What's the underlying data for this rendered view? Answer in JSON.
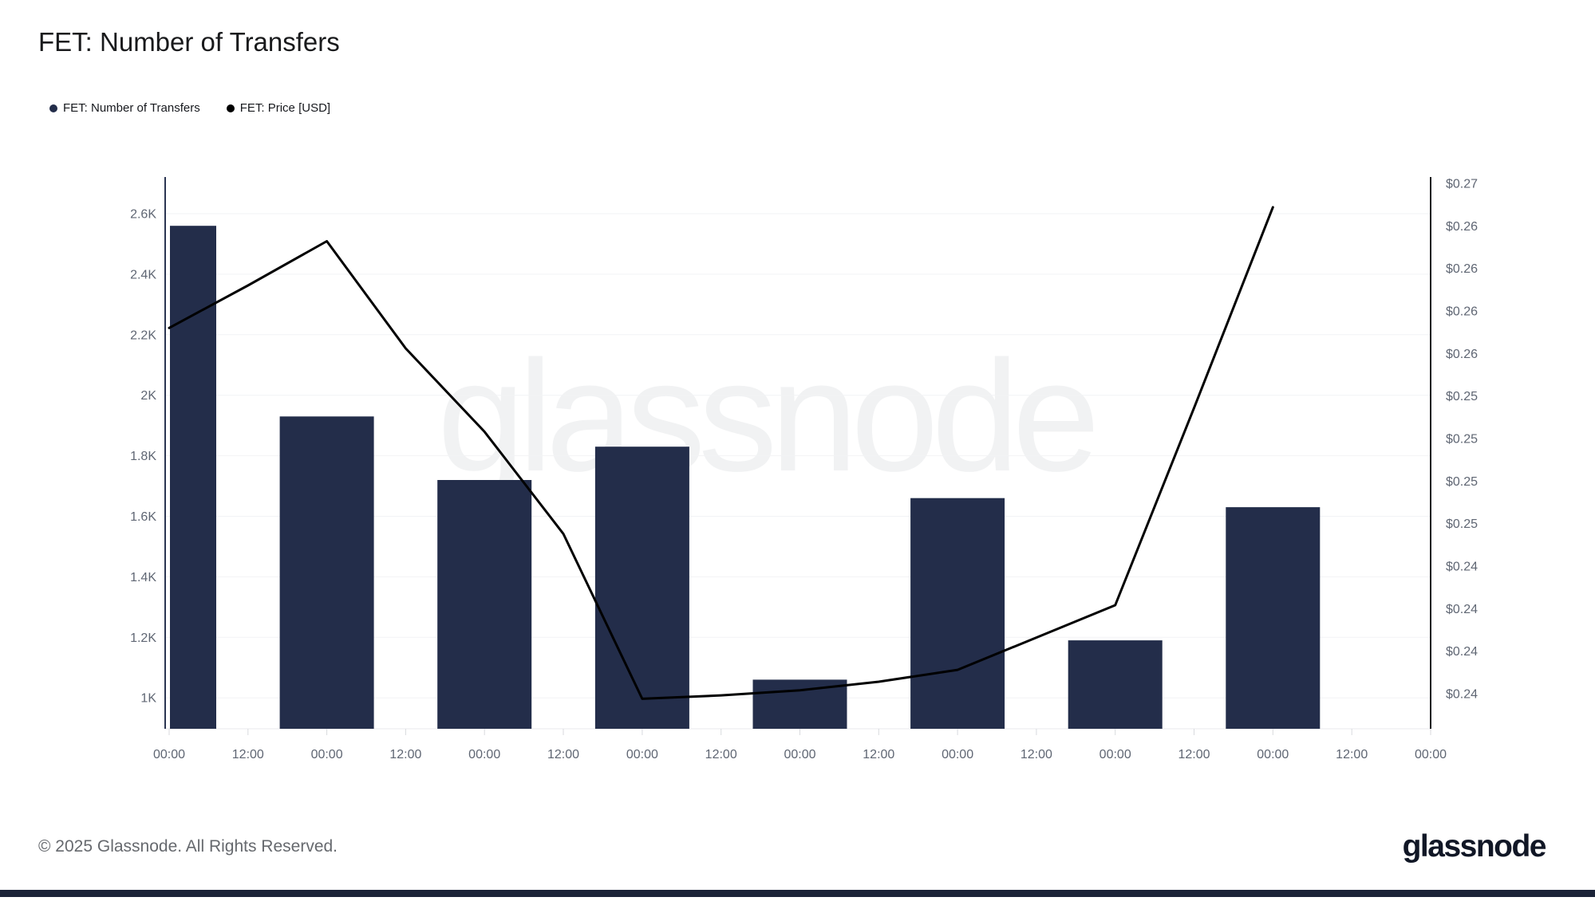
{
  "header": {
    "title": "FET: Number of Transfers"
  },
  "legend": {
    "items": [
      {
        "label": "FET: Number of Transfers",
        "color": "#232d4a"
      },
      {
        "label": "FET: Price [USD]",
        "color": "#000000"
      }
    ]
  },
  "watermark": "glassnode",
  "footer": {
    "copyright": "© 2025 Glassnode. All Rights Reserved.",
    "brand": "glassnode"
  },
  "chart_data": {
    "type": "bar+line",
    "title": "FET: Number of Transfers",
    "x_tick_labels": [
      "00:00",
      "12:00",
      "00:00",
      "12:00",
      "00:00",
      "12:00",
      "00:00",
      "12:00",
      "00:00",
      "12:00",
      "00:00",
      "12:00",
      "00:00",
      "12:00",
      "00:00",
      "12:00",
      "00:00"
    ],
    "left_axis": {
      "tick_labels": [
        "2.6K",
        "2.4K",
        "2.2K",
        "2K",
        "1.8K",
        "1.6K",
        "1.4K",
        "1.2K",
        "1K"
      ],
      "tick_values": [
        2600,
        2400,
        2200,
        2000,
        1800,
        1600,
        1400,
        1200,
        1000
      ],
      "range_min": 897,
      "range_max": 2720,
      "grid": true
    },
    "right_axis": {
      "tick_labels": [
        "$0.27",
        "$0.26",
        "$0.26",
        "$0.26",
        "$0.26",
        "$0.25",
        "$0.25",
        "$0.25",
        "$0.25",
        "$0.24",
        "$0.24",
        "$0.24",
        "$0.24"
      ],
      "tick_values": [
        0.2675,
        0.265,
        0.2625,
        0.26,
        0.2575,
        0.255,
        0.2525,
        0.25,
        0.2475,
        0.245,
        0.2425,
        0.24,
        0.2375
      ]
    },
    "series": [
      {
        "name": "FET: Number of Transfers",
        "type": "bar",
        "axis": "left",
        "color": "#232d4a",
        "x_tick_index": [
          0,
          2,
          4,
          6,
          8,
          10,
          12,
          14
        ],
        "values": [
          2560,
          1930,
          1720,
          1830,
          1060,
          1660,
          1190,
          1630
        ]
      },
      {
        "name": "FET: Price [USD]",
        "type": "line",
        "axis": "right",
        "color": "#000000",
        "x_tick_index": [
          0,
          1,
          2,
          3,
          4,
          5,
          6,
          7,
          8,
          9,
          10,
          11,
          12,
          13,
          14
        ],
        "values": [
          0.259,
          0.2615,
          0.2641,
          0.2578,
          0.2529,
          0.2469,
          0.2372,
          0.2374,
          0.2377,
          0.2382,
          0.2389,
          0.2408,
          0.2427,
          0.2543,
          0.2661
        ]
      }
    ],
    "legend_position": "top-left"
  }
}
